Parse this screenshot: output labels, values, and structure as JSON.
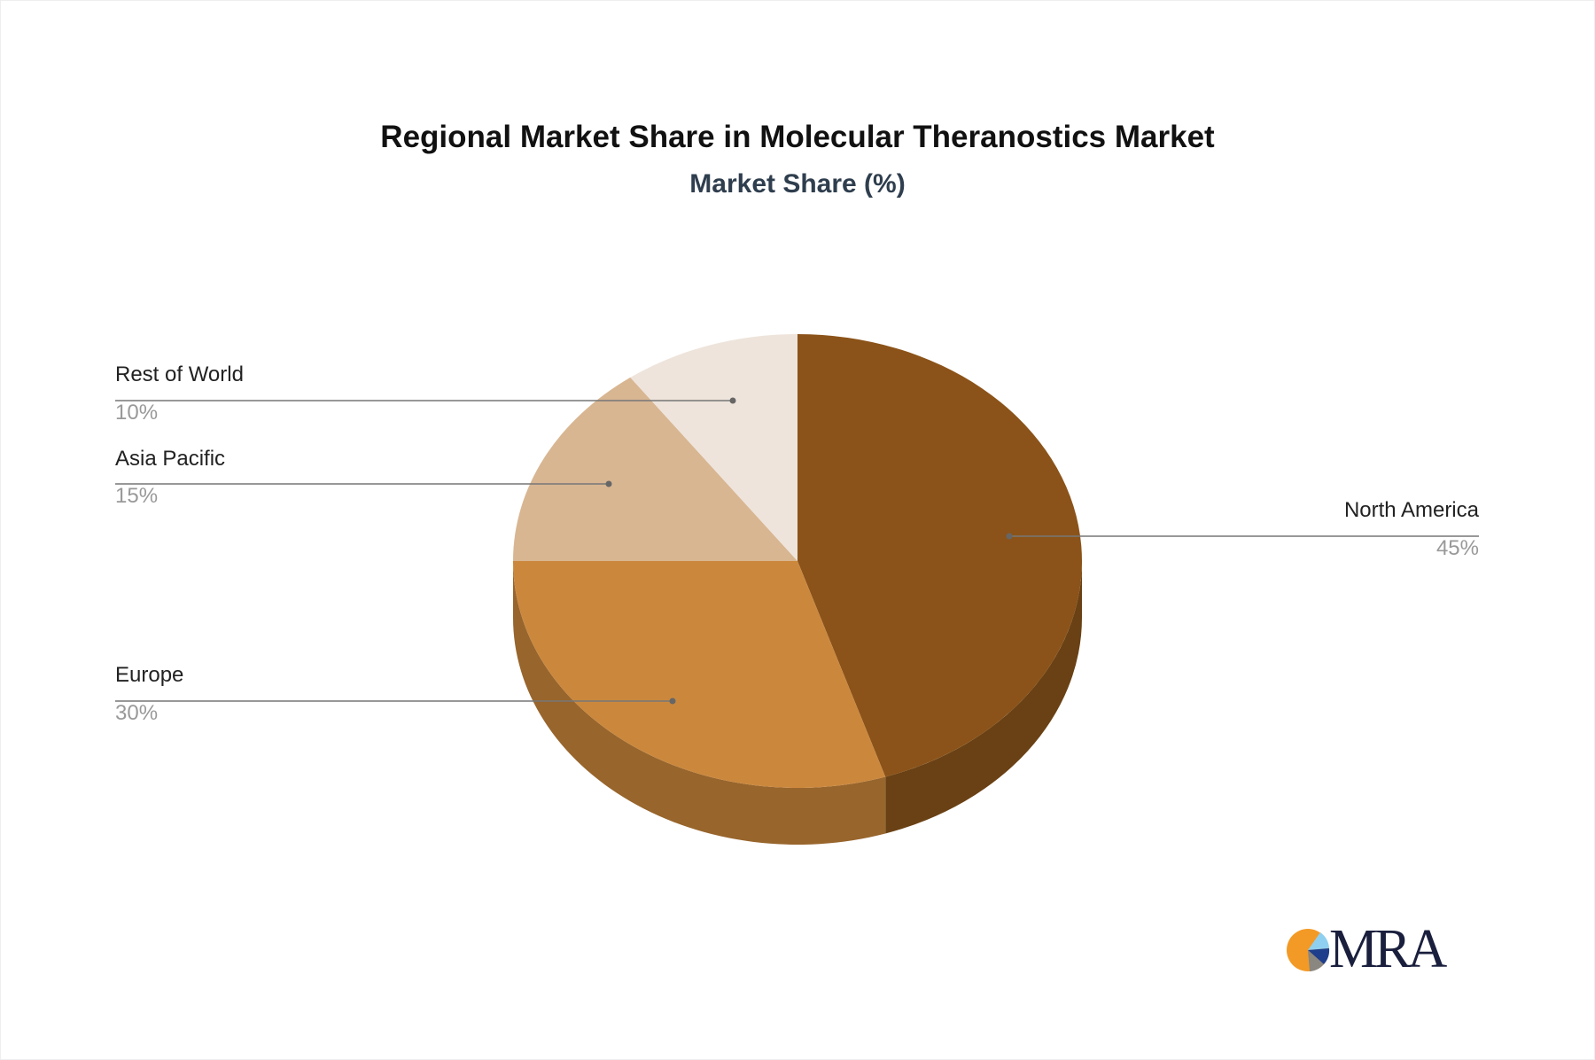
{
  "chart_data": {
    "type": "pie",
    "title": "Regional Market Share in Molecular Theranostics Market",
    "subtitle": "Market Share (%)",
    "style": "3d",
    "start_angle": "12 o'clock, clockwise",
    "slices": [
      {
        "label": "North America",
        "value": 45,
        "display": "45%",
        "color": "#8B5319",
        "side_color": "#6A4114"
      },
      {
        "label": "Europe",
        "value": 30,
        "display": "30%",
        "color": "#CB883D",
        "side_color": "#98652C"
      },
      {
        "label": "Asia Pacific",
        "value": 15,
        "display": "15%",
        "color": "#D8B692",
        "side_color": "#B0916F"
      },
      {
        "label": "Rest of World",
        "value": 10,
        "display": "10%",
        "color": "#EEE4DB",
        "side_color": "#CFC3B8"
      }
    ]
  },
  "logo": {
    "text": "MRA",
    "colors": [
      "#F39A26",
      "#8FD0F0",
      "#1E3E8C",
      "#8A8680"
    ]
  }
}
